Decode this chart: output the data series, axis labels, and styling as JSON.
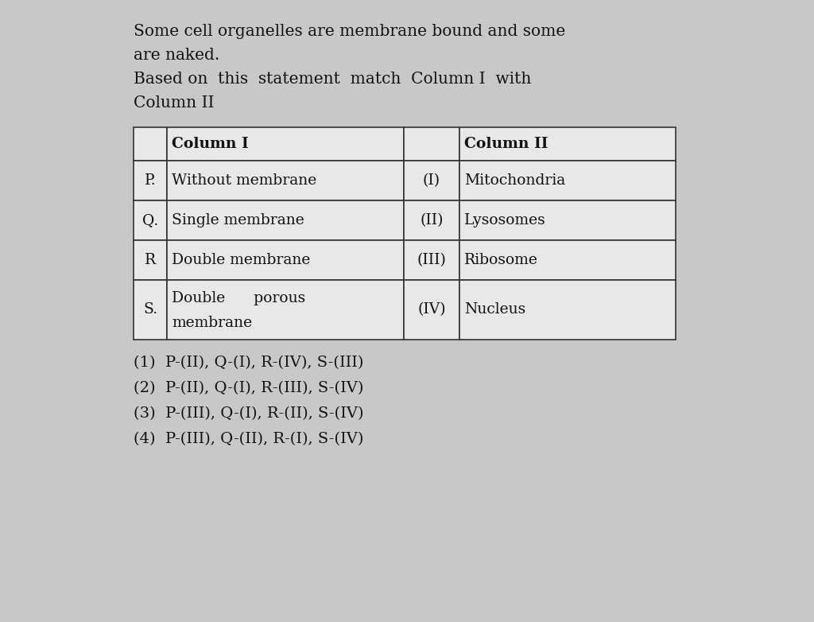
{
  "background_color": "#c8c8c8",
  "title_lines": [
    "Some cell organelles are membrane bound and some",
    "are naked.",
    "Based on  this  statement  match  Column I  with",
    "Column II"
  ],
  "col1_header": "Column I",
  "col2_header": "Column II",
  "table_rows": [
    {
      "label": "P.",
      "col1": "Without membrane",
      "num": "(I)",
      "col2": "Mitochondria"
    },
    {
      "label": "Q.",
      "col1": "Single membrane",
      "num": "(II)",
      "col2": "Lysosomes"
    },
    {
      "label": "R",
      "col1": "Double membrane",
      "num": "(III)",
      "col2": "Ribosome"
    },
    {
      "label": "S.",
      "col1_line1": "Double      porous",
      "col1_line2": "membrane",
      "num": "(IV)",
      "col2": "Nucleus"
    }
  ],
  "options": [
    "(1)  P-(II), Q-(I), R-(IV), S-(III)",
    "(2)  P-(II), Q-(I), R-(III), S-(IV)",
    "(3)  P-(III), Q-(I), R-(II), S-(IV)",
    "(4)  P-(III), Q-(II), R-(I), S-(IV)"
  ],
  "cell_bg": "#e8e8e8",
  "cell_edge": "#333333",
  "text_color": "#111111",
  "font_size_title": 14.5,
  "font_size_table": 13.5,
  "font_size_options": 14
}
